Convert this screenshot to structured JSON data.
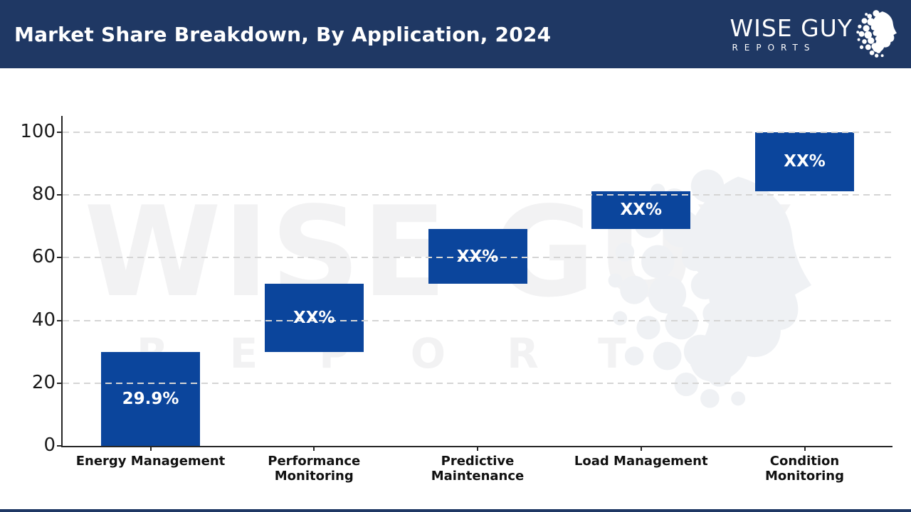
{
  "header": {
    "title": "Market Share Breakdown, By Application, 2024",
    "logo": {
      "line1": "WISE GUY",
      "line2": "REPORTS"
    }
  },
  "watermark": {
    "line1": "WISE GUY",
    "line2": "REPORTS"
  },
  "colors": {
    "header_bg": "#1f3864",
    "bar": "#0b459c",
    "grid": "#d5d5d5",
    "axis": "#262626",
    "value_label": "#ffffff",
    "watermark": "#f2f2f3"
  },
  "chart_data": {
    "type": "bar",
    "subtype": "waterfall",
    "title": "Market Share Breakdown, By Application, 2024",
    "xlabel": "",
    "ylabel": "",
    "ylim": [
      0,
      100
    ],
    "yticks": [
      "0",
      "20",
      "40",
      "60",
      "80",
      "100"
    ],
    "grid": "horizontal-dashed",
    "legend": "none",
    "categories": [
      "Energy Management",
      "Performance\nMonitoring",
      "Predictive\nMaintenance",
      "Load Management",
      "Condition\nMonitoring"
    ],
    "segments": [
      {
        "category": "Energy Management",
        "start": 0,
        "end": 29.9,
        "label": "29.9%"
      },
      {
        "category": "Performance Monitoring",
        "start": 29.9,
        "end": 51.6,
        "label": "XX%"
      },
      {
        "category": "Predictive Maintenance",
        "start": 51.6,
        "end": 69.2,
        "label": "XX%"
      },
      {
        "category": "Load Management",
        "start": 69.2,
        "end": 81.2,
        "label": "XX%"
      },
      {
        "category": "Condition Monitoring",
        "start": 81.2,
        "end": 100,
        "label": "XX%"
      }
    ]
  }
}
